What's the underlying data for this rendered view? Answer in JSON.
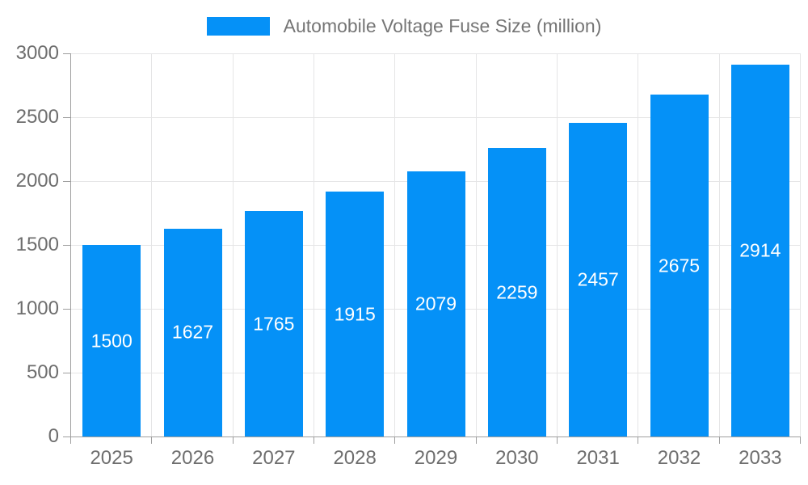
{
  "legend": {
    "label": "Automobile Voltage Fuse Size (million)"
  },
  "chart_data": {
    "type": "bar",
    "title": "Automobile Voltage Fuse Size (million)",
    "series_name": "Automobile Voltage Fuse Size (million)",
    "categories": [
      "2025",
      "2026",
      "2027",
      "2028",
      "2029",
      "2030",
      "2031",
      "2032",
      "2033"
    ],
    "values": [
      1500,
      1627,
      1765,
      1915,
      2079,
      2259,
      2457,
      2675,
      2914
    ],
    "xlabel": "",
    "ylabel": "",
    "ylim": [
      0,
      3000
    ],
    "y_ticks": [
      0,
      500,
      1000,
      1500,
      2000,
      2500,
      3000
    ],
    "grid": true,
    "legend_position": "top",
    "value_labels": "inside-center",
    "colors": {
      "bar": "#0591f7",
      "value_label": "#ffffff",
      "axis": "#9e9e9e",
      "grid": "#e5e5e6",
      "tick_label": "#6e6e6e",
      "legend_text": "#757575"
    }
  }
}
